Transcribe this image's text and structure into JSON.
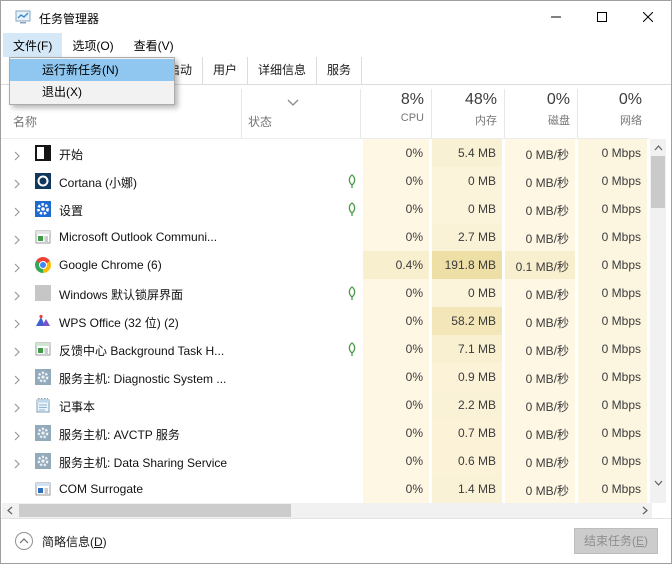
{
  "window": {
    "title": "任务管理器"
  },
  "menubar": {
    "items": [
      {
        "label": "文件(F)"
      },
      {
        "label": "选项(O)"
      },
      {
        "label": "查看(V)"
      }
    ]
  },
  "file_menu": {
    "items": [
      {
        "label": "运行新任务(N)",
        "highlighted": true
      },
      {
        "label": "退出(X)",
        "highlighted": false
      }
    ]
  },
  "tabs": [
    {
      "label": "启动"
    },
    {
      "label": "用户"
    },
    {
      "label": "详细信息"
    },
    {
      "label": "服务"
    }
  ],
  "columns": {
    "name": "名称",
    "status": "状态",
    "stats": [
      {
        "pct": "8%",
        "label": "CPU"
      },
      {
        "pct": "48%",
        "label": "内存"
      },
      {
        "pct": "0%",
        "label": "磁盘"
      },
      {
        "pct": "0%",
        "label": "网络"
      }
    ]
  },
  "processes": [
    {
      "name": "开始",
      "icon": "start-icon",
      "expandable": true,
      "suspended": false,
      "cells": [
        {
          "v": "0%",
          "bg": "#fdf7e3"
        },
        {
          "v": "5.4 MB",
          "bg": "#f9f1d3"
        },
        {
          "v": "0 MB/秒",
          "bg": "#fdf7e3"
        },
        {
          "v": "0 Mbps",
          "bg": "#fcf6e1"
        }
      ]
    },
    {
      "name": "Cortana (小娜)",
      "icon": "cortana-icon",
      "expandable": true,
      "suspended": true,
      "cells": [
        {
          "v": "0%",
          "bg": "#fdf7e3"
        },
        {
          "v": "0 MB",
          "bg": "#fbf3da"
        },
        {
          "v": "0 MB/秒",
          "bg": "#fdf7e3"
        },
        {
          "v": "0 Mbps",
          "bg": "#fcf6e1"
        }
      ]
    },
    {
      "name": "设置",
      "icon": "settings-icon",
      "expandable": true,
      "suspended": true,
      "cells": [
        {
          "v": "0%",
          "bg": "#fdf7e3"
        },
        {
          "v": "0 MB",
          "bg": "#fbf3da"
        },
        {
          "v": "0 MB/秒",
          "bg": "#fdf7e3"
        },
        {
          "v": "0 Mbps",
          "bg": "#fcf6e1"
        }
      ]
    },
    {
      "name": "Microsoft Outlook Communi...",
      "icon": "outlook-icon",
      "expandable": true,
      "suspended": false,
      "cells": [
        {
          "v": "0%",
          "bg": "#fdf7e3"
        },
        {
          "v": "2.7 MB",
          "bg": "#faf2d6"
        },
        {
          "v": "0 MB/秒",
          "bg": "#fdf7e3"
        },
        {
          "v": "0 Mbps",
          "bg": "#fcf6e1"
        }
      ]
    },
    {
      "name": "Google Chrome (6)",
      "icon": "chrome-icon",
      "expandable": true,
      "suspended": false,
      "cells": [
        {
          "v": "0.4%",
          "bg": "#f8efcf"
        },
        {
          "v": "191.8 MB",
          "bg": "#eedfa6"
        },
        {
          "v": "0.1 MB/秒",
          "bg": "#f8efcf"
        },
        {
          "v": "0 Mbps",
          "bg": "#fcf6e1"
        }
      ]
    },
    {
      "name": "Windows 默认锁屏界面",
      "icon": "lockscreen-icon",
      "expandable": true,
      "suspended": true,
      "cells": [
        {
          "v": "0%",
          "bg": "#fdf7e3"
        },
        {
          "v": "0 MB",
          "bg": "#fbf3da"
        },
        {
          "v": "0 MB/秒",
          "bg": "#fdf7e3"
        },
        {
          "v": "0 Mbps",
          "bg": "#fcf6e1"
        }
      ]
    },
    {
      "name": "WPS Office (32 位) (2)",
      "icon": "wps-icon",
      "expandable": true,
      "suspended": false,
      "cells": [
        {
          "v": "0%",
          "bg": "#fdf7e3"
        },
        {
          "v": "58.2 MB",
          "bg": "#f3e6b9"
        },
        {
          "v": "0 MB/秒",
          "bg": "#fdf7e3"
        },
        {
          "v": "0 Mbps",
          "bg": "#fcf6e1"
        }
      ]
    },
    {
      "name": "反馈中心 Background Task H...",
      "icon": "feedback-icon",
      "expandable": true,
      "suspended": true,
      "cells": [
        {
          "v": "0%",
          "bg": "#fdf7e3"
        },
        {
          "v": "7.1 MB",
          "bg": "#f9f0d1"
        },
        {
          "v": "0 MB/秒",
          "bg": "#fdf7e3"
        },
        {
          "v": "0 Mbps",
          "bg": "#fcf6e1"
        }
      ]
    },
    {
      "name": "服务主机: Diagnostic System ...",
      "icon": "gear-icon",
      "expandable": true,
      "suspended": false,
      "cells": [
        {
          "v": "0%",
          "bg": "#fdf7e3"
        },
        {
          "v": "0.9 MB",
          "bg": "#fbf2d8"
        },
        {
          "v": "0 MB/秒",
          "bg": "#fdf7e3"
        },
        {
          "v": "0 Mbps",
          "bg": "#fcf6e1"
        }
      ]
    },
    {
      "name": "记事本",
      "icon": "notepad-icon",
      "expandable": true,
      "suspended": false,
      "cells": [
        {
          "v": "0%",
          "bg": "#fdf7e3"
        },
        {
          "v": "2.2 MB",
          "bg": "#faf2d6"
        },
        {
          "v": "0 MB/秒",
          "bg": "#fdf7e3"
        },
        {
          "v": "0 Mbps",
          "bg": "#fcf6e1"
        }
      ]
    },
    {
      "name": "服务主机: AVCTP 服务",
      "icon": "gear-icon",
      "expandable": true,
      "suspended": false,
      "cells": [
        {
          "v": "0%",
          "bg": "#fdf7e3"
        },
        {
          "v": "0.7 MB",
          "bg": "#fbf2d8"
        },
        {
          "v": "0 MB/秒",
          "bg": "#fdf7e3"
        },
        {
          "v": "0 Mbps",
          "bg": "#fcf6e1"
        }
      ]
    },
    {
      "name": "服务主机: Data Sharing Service",
      "icon": "gear-icon",
      "expandable": true,
      "suspended": false,
      "cells": [
        {
          "v": "0%",
          "bg": "#fdf7e3"
        },
        {
          "v": "0.6 MB",
          "bg": "#fbf2d8"
        },
        {
          "v": "0 MB/秒",
          "bg": "#fdf7e3"
        },
        {
          "v": "0 Mbps",
          "bg": "#fcf6e1"
        }
      ]
    },
    {
      "name": "COM Surrogate",
      "icon": "com-window-icon",
      "expandable": false,
      "suspended": false,
      "cells": [
        {
          "v": "0%",
          "bg": "#fdf7e3"
        },
        {
          "v": "1.4 MB",
          "bg": "#faf2d7"
        },
        {
          "v": "0 MB/秒",
          "bg": "#fdf7e3"
        },
        {
          "v": "0 Mbps",
          "bg": "#fcf6e1"
        }
      ]
    }
  ],
  "footer": {
    "details_pre": "简略信息(",
    "details_key": "D",
    "details_post": ")",
    "end_task_pre": "结束任务(",
    "end_task_key": "E",
    "end_task_post": ")"
  },
  "colors": {
    "menu_highlight": "#8fc7f0",
    "suspend_leaf_green": "#4a9b45",
    "heat_base": "#fdf7e3"
  }
}
